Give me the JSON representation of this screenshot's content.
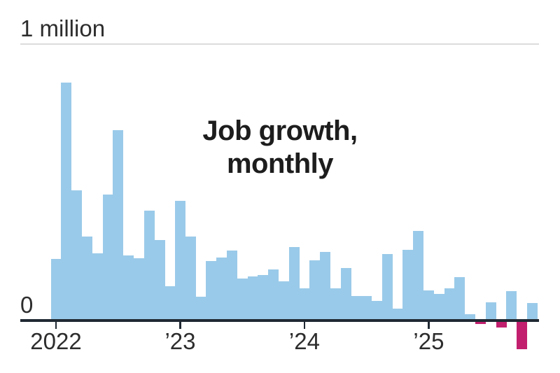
{
  "chart": {
    "title_line1": "Job growth,",
    "title_line2": "monthly",
    "y_max_label": "1 million",
    "y_zero_label": "0",
    "colors": {
      "positive_bar": "#9acae9",
      "negative_bar": "#c21f6e",
      "axis_line": "#202933",
      "gridline": "#dcdcdc",
      "axis_text": "#2d2d2d",
      "title_text": "#1d1d1d",
      "background": "#ffffff"
    }
  },
  "chart_data": {
    "type": "bar",
    "title": "Job growth, monthly",
    "unit": "jobs, thousands per month",
    "ylabel": "",
    "xlabel": "",
    "ylim_thousands": [
      -150,
      1000
    ],
    "grid": "single top gridline at 1 million and dark zero axis line",
    "legend": "none",
    "x_ticks": [
      {
        "label": "2022",
        "month_index": 0
      },
      {
        "label": "’23",
        "month_index": 12
      },
      {
        "label": "’24",
        "month_index": 24
      },
      {
        "label": "’25",
        "month_index": 36
      }
    ],
    "categories": [
      "Jan 2022",
      "Feb 2022",
      "Mar 2022",
      "Apr 2022",
      "May 2022",
      "Jun 2022",
      "Jul 2022",
      "Aug 2022",
      "Sep 2022",
      "Oct 2022",
      "Nov 2022",
      "Dec 2022",
      "Jan 2023",
      "Feb 2023",
      "Mar 2023",
      "Apr 2023",
      "May 2023",
      "Jun 2023",
      "Jul 2023",
      "Aug 2023",
      "Sep 2023",
      "Oct 2023",
      "Nov 2023",
      "Dec 2023",
      "Jan 2024",
      "Feb 2024",
      "Mar 2024",
      "Apr 2024",
      "May 2024",
      "Jun 2024",
      "Jul 2024",
      "Aug 2024",
      "Sep 2024",
      "Oct 2024",
      "Nov 2024",
      "Dec 2024",
      "Jan 2025",
      "Feb 2025",
      "Mar 2025",
      "Apr 2025",
      "May 2025",
      "Jun 2025",
      "Jul 2025",
      "Aug 2025",
      "Sep 2025",
      "Oct 2025",
      "Nov 2025"
    ],
    "values_thousands": [
      222,
      859,
      469,
      303,
      242,
      455,
      687,
      235,
      226,
      396,
      291,
      125,
      432,
      303,
      85,
      214,
      228,
      252,
      152,
      158,
      165,
      185,
      142,
      264,
      117,
      218,
      247,
      115,
      189,
      89,
      89,
      71,
      239,
      43,
      256,
      323,
      109,
      96,
      117,
      157,
      23,
      -13,
      66,
      -26,
      107,
      -103,
      64
    ]
  }
}
